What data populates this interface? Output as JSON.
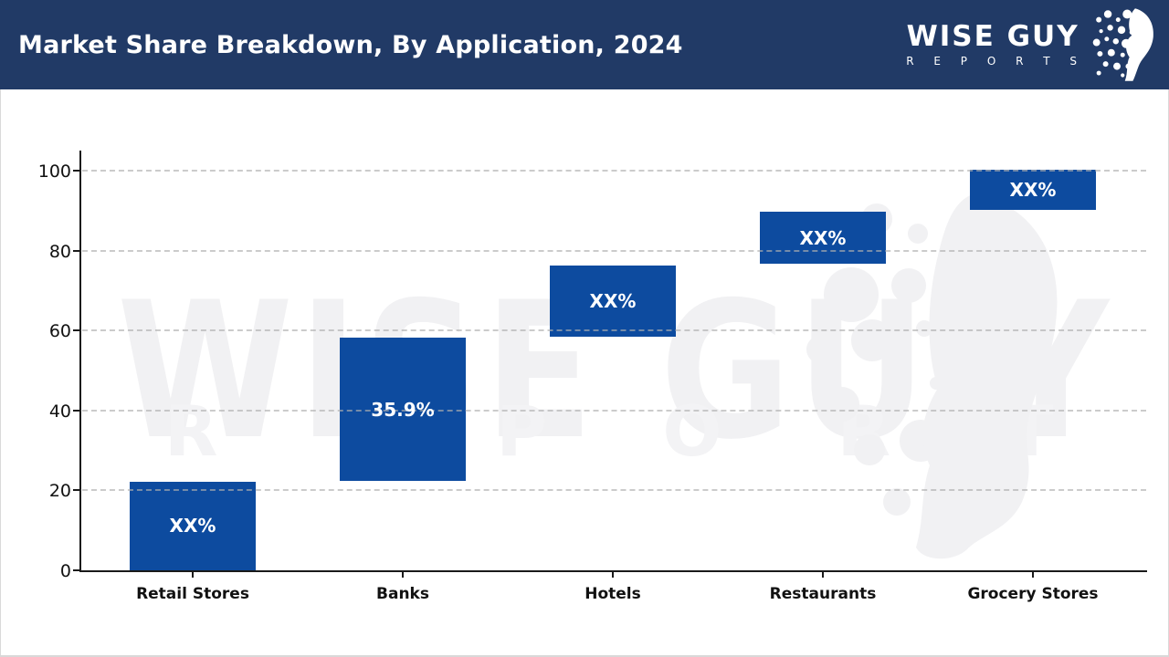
{
  "header": {
    "title": "Market Share Breakdown, By Application, 2024",
    "brand": {
      "name": "WISE GUY",
      "sub": "R E P O R T S"
    }
  },
  "watermark": {
    "line1": "WISE GU Y",
    "line2": "R E P O R T S"
  },
  "colors": {
    "header_bg": "#213a66",
    "bar": "#0d4b9f",
    "axis": "#1a1a1a",
    "grid_dash": "#afafaf",
    "watermark": "#f1f1f3"
  },
  "chart_data": {
    "type": "bar",
    "subtype": "floating-segment (waterfall-style market share)",
    "title": "Market Share Breakdown, By Application, 2024",
    "categories": [
      "Retail Stores",
      "Banks",
      "Hotels",
      "Restaurants",
      "Grocery Stores"
    ],
    "bars": [
      {
        "category": "Retail Stores",
        "value_label": "XX%",
        "base": 0,
        "top": 22.2
      },
      {
        "category": "Banks",
        "value_label": "35.9%",
        "base": 22.3,
        "top": 58.2
      },
      {
        "category": "Hotels",
        "value_label": "XX%",
        "base": 58.5,
        "top": 76.3
      },
      {
        "category": "Restaurants",
        "value_label": "XX%",
        "base": 76.6,
        "top": 89.8
      },
      {
        "category": "Grocery Stores",
        "value_label": "XX%",
        "base": 90.2,
        "top": 100.3
      }
    ],
    "yticks": [
      0,
      20,
      40,
      60,
      80,
      100
    ],
    "ylim": [
      0,
      105
    ],
    "xlabel": "",
    "ylabel": "",
    "grid": "horizontal dashed, drawn over bars",
    "legend": false,
    "bar_color": "#0d4b9f"
  }
}
